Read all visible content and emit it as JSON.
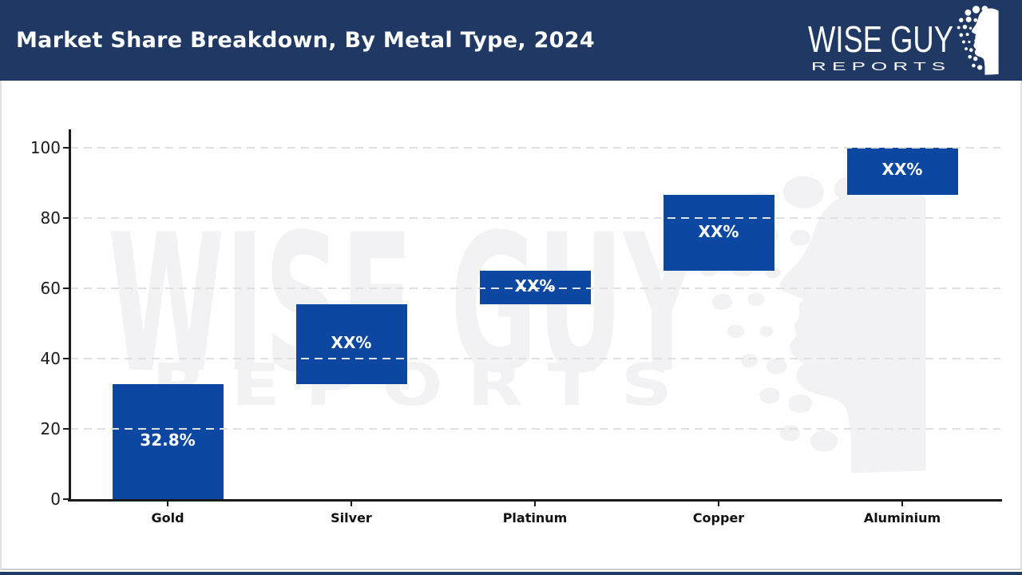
{
  "header": {
    "title": "Market Share Breakdown, By Metal Type, 2024",
    "logo": {
      "line1": "WISE GUY",
      "line2": "R E P O R T S"
    }
  },
  "watermark": {
    "line1": "WISE GUY",
    "line2": "R E P O R T S"
  },
  "colors": {
    "header_bg": "#1F3864",
    "bar": "#0C47A1",
    "grid": "#E0E0E0",
    "axis": "#1A1A1A",
    "bar_label": "#FFFFFF",
    "watermark": "#F2F2F4"
  },
  "chart_data": {
    "type": "bar",
    "subtype": "waterfall",
    "title": "Market Share Breakdown, By Metal Type, 2024",
    "categories": [
      "Gold",
      "Silver",
      "Platinum",
      "Copper",
      "Aluminium"
    ],
    "segments": [
      {
        "category": "Gold",
        "start": 0,
        "end": 32.8,
        "label": "32.8%"
      },
      {
        "category": "Silver",
        "start": 32.8,
        "end": 55.5,
        "label": "XX%"
      },
      {
        "category": "Platinum",
        "start": 55.5,
        "end": 64.9,
        "label": "XX%"
      },
      {
        "category": "Copper",
        "start": 64.9,
        "end": 86.6,
        "label": "XX%"
      },
      {
        "category": "Aluminium",
        "start": 86.6,
        "end": 100,
        "label": "XX%"
      }
    ],
    "yticks": [
      0,
      20,
      40,
      60,
      80,
      100
    ],
    "ylim": [
      0,
      105
    ],
    "xlabel": "",
    "ylabel": "",
    "grid": "dashed horizontal, drawn over bars",
    "legend": "none"
  }
}
